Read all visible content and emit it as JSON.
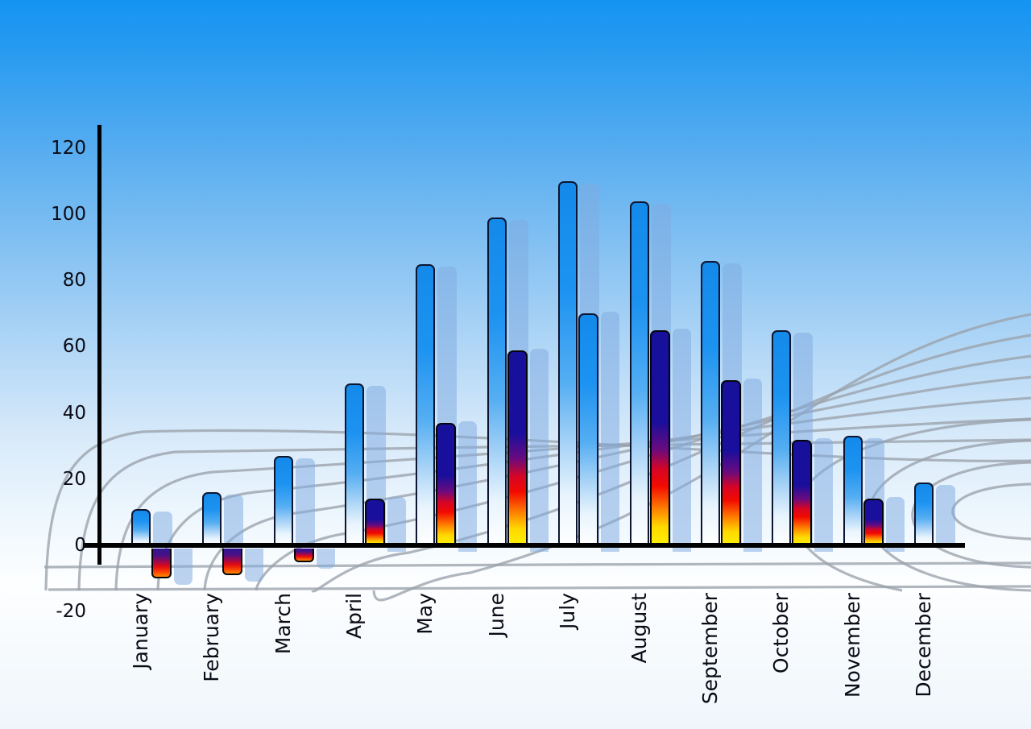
{
  "chart_data": {
    "type": "bar",
    "categories": [
      "January",
      "February",
      "March",
      "April",
      "May",
      "June",
      "July",
      "August",
      "September",
      "October",
      "November",
      "December"
    ],
    "series": [
      {
        "name": "primary-blue-bars",
        "values": [
          11,
          16,
          27,
          49,
          85,
          99,
          110,
          104,
          86,
          65,
          33,
          19
        ]
      },
      {
        "name": "secondary-accent-bars",
        "values": [
          -10,
          -9,
          -5,
          14,
          37,
          59,
          70,
          65,
          50,
          32,
          14,
          null
        ],
        "styles": [
          "fire",
          "fire",
          "fire",
          "fire",
          "fire",
          "fire",
          "blue",
          "fire",
          "fire",
          "fire",
          "fire",
          null
        ]
      }
    ],
    "y_ticks": [
      120,
      100,
      80,
      60,
      40,
      20,
      0,
      -20
    ],
    "ylim": [
      -20,
      120
    ],
    "title": "",
    "xlabel": "",
    "ylabel": "",
    "legend_position": "none",
    "grid": "decorative curved perspective floor grid"
  },
  "colors": {
    "sky_top": "#1493F2",
    "sky_bottom": "#EFF6FB",
    "bar_blue": "#1B8FEC",
    "bar_fade_bottom": "#FFFFFF",
    "shadow_blue": "#A9C9EE",
    "fire_navy": "#16109B",
    "fire_red": "#F20A00",
    "fire_orange": "#FF8400",
    "fire_yellow": "#FFF200",
    "axis": "#000000",
    "text": "#0B0B16",
    "grid_line": "#9AA2AB"
  }
}
